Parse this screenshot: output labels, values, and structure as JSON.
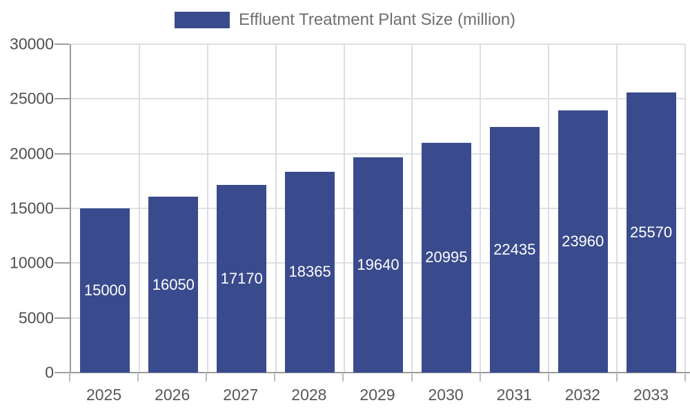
{
  "legend": {
    "label": "Effluent Treatment Plant Size (million)"
  },
  "colors": {
    "bar": "#3A4B8D",
    "value_label": "#ffffff",
    "axis_line": "#9a9a9a",
    "grid_line": "#dfe0e5",
    "tick_label": "#4f4f4f",
    "legend_text": "#6f6f6f",
    "background": "#ffffff"
  },
  "chart_data": {
    "type": "bar",
    "title": "Effluent Treatment Plant Size (million)",
    "categories": [
      "2025",
      "2026",
      "2027",
      "2028",
      "2029",
      "2030",
      "2031",
      "2032",
      "2033"
    ],
    "values": [
      15000,
      16050,
      17170,
      18365,
      19640,
      20995,
      22435,
      23960,
      25570
    ],
    "bar_value_labels": [
      "15000",
      "16050",
      "17170",
      "18365",
      "19640",
      "20995",
      "22435",
      "23960",
      "25570"
    ],
    "xlabel": "",
    "ylabel": "",
    "ylim": [
      0,
      30000
    ],
    "yticks": [
      0,
      5000,
      10000,
      15000,
      20000,
      25000,
      30000
    ],
    "ytick_labels": [
      "0",
      "5000",
      "10000",
      "15000",
      "20000",
      "25000",
      "30000"
    ],
    "grid": true,
    "legend_position": "top",
    "value_labels_position": "center-of-bar"
  }
}
